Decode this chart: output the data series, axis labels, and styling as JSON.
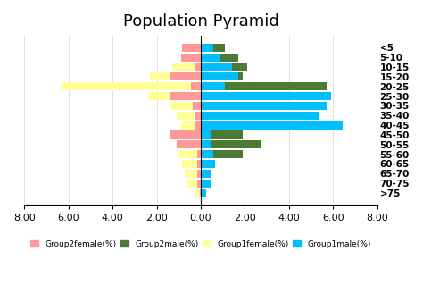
{
  "title": "Population Pyramid",
  "age_groups": [
    "<5",
    "5-10",
    "10-15",
    "15-20",
    "20-25",
    "25-30",
    "30-35",
    "35-40",
    "40-45",
    "45-50",
    "50-55",
    "55-60",
    "60-65",
    "65-70",
    "70-75",
    ">75"
  ],
  "group1_female": [
    -0.05,
    -0.4,
    -1.3,
    -2.3,
    -6.3,
    -2.4,
    -1.4,
    -1.1,
    -0.9,
    -0.8,
    -0.7,
    -1.0,
    -0.85,
    -0.75,
    -0.65,
    -0.25
  ],
  "group2_female": [
    -0.85,
    -0.9,
    -0.25,
    -1.4,
    -0.45,
    -1.4,
    -0.35,
    -0.25,
    -0.25,
    -1.4,
    -1.1,
    -0.15,
    -0.15,
    -0.15,
    -0.15,
    -0.05
  ],
  "group1_male": [
    0.55,
    0.9,
    1.4,
    1.7,
    1.1,
    5.9,
    5.7,
    5.4,
    6.45,
    0.45,
    0.45,
    0.55,
    0.65,
    0.45,
    0.45,
    0.25
  ],
  "group2_male": [
    1.1,
    1.7,
    2.1,
    1.9,
    5.7,
    5.9,
    1.4,
    1.4,
    1.4,
    1.9,
    2.7,
    1.9,
    0.55,
    0.35,
    0.25,
    0.08
  ],
  "color_group2_female": "#FF9999",
  "color_group2_male": "#4C7A34",
  "color_group1_female": "#FFFF99",
  "color_group1_male": "#00BFFF",
  "xlim": [
    -8,
    8
  ],
  "xticks": [
    -8,
    -6,
    -4,
    -2,
    0,
    2,
    4,
    6,
    8
  ],
  "xticklabels": [
    "8.00",
    "6.00",
    "4.00",
    "2.00",
    "0.00",
    "2.00",
    "4.00",
    "6.00",
    "8.00"
  ],
  "legend_labels": [
    "Group2female(%)",
    "Group2male(%)",
    "Group1female(%)",
    "Group1male(%)"
  ],
  "legend_colors": [
    "#FF9999",
    "#4C7A34",
    "#FFFF99",
    "#00BFFF"
  ]
}
